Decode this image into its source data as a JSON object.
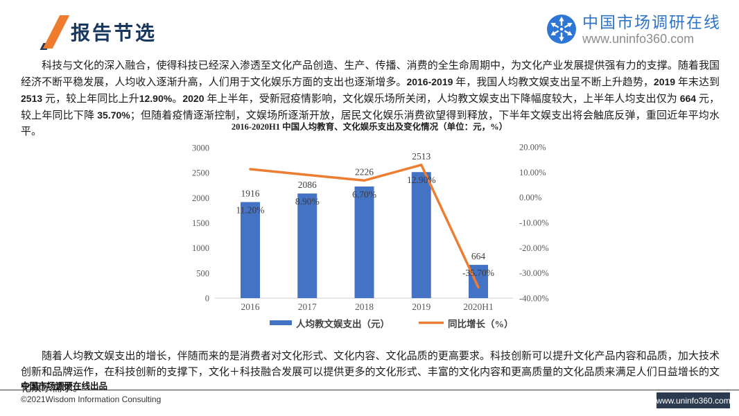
{
  "header": {
    "title": "报告节选",
    "brand_name": "中国市场调研在线",
    "brand_url": "www.uninfo360.com"
  },
  "colors": {
    "title_navy": "#17375E",
    "accent_orange": "#EE7B2E",
    "brand_blue": "#2E74C8",
    "bar_blue": "#4472C4",
    "line_orange": "#ED7D31",
    "axis_gray": "#595959",
    "badge_bg": "#2B3A4E"
  },
  "icons": {
    "brand_logo": "snowflake-compass-icon",
    "header_mark": "orange-slash-icon"
  },
  "paragraphs": {
    "intro": [
      {
        "text": "科技与文化的深入融合，使得科技已经深入渗透至文化产品创造、生产、传播、消费的全生命周期中，为文化产业发展提供强有力的支撑。随着我国经济不断平稳发展，人均收入逐渐升高，人们用于文化娱乐方面的支出也逐渐增多。",
        "bold": false
      },
      {
        "text": "2016-2019",
        "bold": true
      },
      {
        "text": " 年，我国人均教文娱支出呈不断上升趋势，",
        "bold": false
      },
      {
        "text": "2019",
        "bold": true
      },
      {
        "text": " 年末达到 ",
        "bold": false
      },
      {
        "text": "2513",
        "bold": true
      },
      {
        "text": " 元，较上年同比上升",
        "bold": false
      },
      {
        "text": "12.90%",
        "bold": true
      },
      {
        "text": "。",
        "bold": false
      },
      {
        "text": "2020",
        "bold": true
      },
      {
        "text": " 年上半年，受新冠疫情影响，文化娱乐场所关闭，人均教文娱支出下降幅度较大，上半年人均支出仅为 ",
        "bold": false
      },
      {
        "text": "664",
        "bold": true
      },
      {
        "text": " 元，较上年同比下降 ",
        "bold": false
      },
      {
        "text": "35.70%",
        "bold": true
      },
      {
        "text": "；但随着疫情逐渐控制，文娱场所逐渐开放，居民文化娱乐消费欲望得到释放，下半年文娱支出将会触底反弹，重回近年平均水平。",
        "bold": false
      }
    ],
    "outro": [
      {
        "text": "随着人均教文娱支出的增长，伴随而来的是消费者对文化形式、文化内容、文化品质的更高要求。科技创新可以提升文化产品内容和品质，加大技术创新和品牌运作，在科技创新的支撑下，文化＋科技融合发展可以提供更多的文化形式、丰富的文化内容和更高质量的文化品质来满足人们日益增长的文化娱乐需求。",
        "bold": false
      }
    ]
  },
  "chart_data": {
    "type": "bar",
    "subtype": "bar-line-combo",
    "title": "2016-2020H1 中国人均教育、文化娱乐支出及变化情况（单位：元，%）",
    "categories": [
      "2016",
      "2017",
      "2018",
      "2019",
      "2020H1"
    ],
    "series": [
      {
        "name": "人均教文娱支出（元）",
        "type": "bar",
        "axis": "left",
        "color": "#4472C4",
        "values": [
          1916,
          2086,
          2226,
          2513,
          664
        ],
        "labels": [
          "1916",
          "2086",
          "2226",
          "2513",
          "664"
        ]
      },
      {
        "name": "同比增长（%）",
        "type": "line",
        "axis": "right",
        "color": "#ED7D31",
        "values": [
          11.2,
          8.9,
          6.7,
          12.9,
          -35.7
        ],
        "labels": [
          "11.20%",
          "8.90%",
          "6.70%",
          "12.90%",
          "-35.70%"
        ]
      }
    ],
    "left_axis": {
      "min": 0,
      "max": 3000,
      "step": 500,
      "ticks_bottom_to_top": [
        "0",
        "500",
        "1000",
        "1500",
        "2000",
        "2500",
        "3000"
      ]
    },
    "right_axis": {
      "min": -40,
      "max": 20,
      "step": 10,
      "ticks_top_to_bottom": [
        "20.00%",
        "10.00%",
        "0.00%",
        "-10.00%",
        "-20.00%",
        "-30.00%",
        "-40.00%"
      ]
    },
    "grid": false,
    "legend_position": "bottom"
  },
  "footer": {
    "produced_by": "中国市场调研在线出品",
    "copyright": "©2021Wisdom Information Consulting",
    "badge_url": "www.uninfo360.com"
  }
}
